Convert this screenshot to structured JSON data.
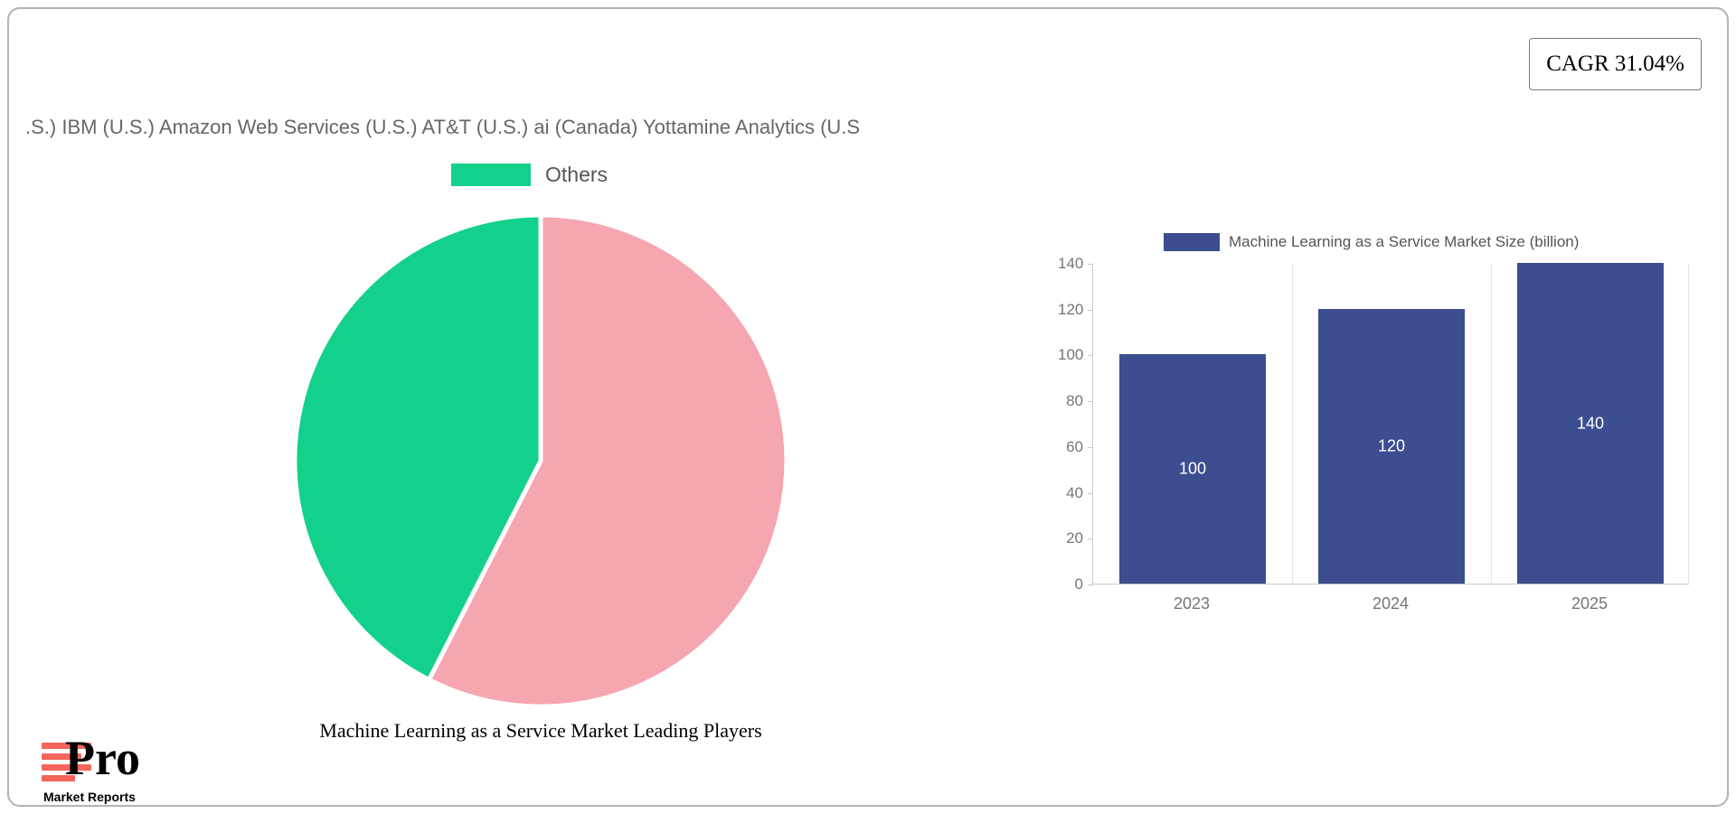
{
  "header": {
    "cagr_badge": "CAGR 31.04%"
  },
  "pie_section": {
    "players_legend_text": ".S.) IBM (U.S.) Amazon Web Services (U.S.) AT&T (U.S.) ai (Canada) Yottamine Analytics (U.S",
    "others_legend_label": "Others",
    "caption": "Machine Learning as a Service Market Leading Players"
  },
  "bar_section": {
    "legend_label": "Machine Learning as a Service Market Size (billion)"
  },
  "logo": {
    "title": "Pro",
    "subtitle": "Market Reports"
  },
  "colors": {
    "pie_green": "#13d18b",
    "pie_pink": "#f5a6b0",
    "bar_navy": "#3c4e8f",
    "logo_red": "#f4655c"
  },
  "chart_data": [
    {
      "type": "pie",
      "title": "Machine Learning as a Service Market Leading Players",
      "legend_position": "top",
      "start_angle_deg": -90,
      "direction": "clockwise",
      "slices": [
        {
          "label": ".S.) IBM (U.S.) Amazon Web Services (U.S.) AT&T (U.S.) ai (Canada) Yottamine Analytics (U.S",
          "value": 57.5,
          "color": "#f5a6b0"
        },
        {
          "label": "Others",
          "value": 42.5,
          "color": "#13d18b"
        }
      ]
    },
    {
      "type": "bar",
      "legend": "Machine Learning as a Service Market Size (billion)",
      "categories": [
        "2023",
        "2024",
        "2025"
      ],
      "values": [
        100,
        120,
        140
      ],
      "value_labels": [
        "100",
        "120",
        "140"
      ],
      "value_label_color": "#ffffff",
      "bar_color": "#3c4e8f",
      "xlabel": "",
      "ylabel": "",
      "ylim": [
        0,
        140
      ],
      "yticks": [
        0,
        20,
        40,
        60,
        80,
        100,
        120,
        140
      ],
      "grid": "vertical-only"
    }
  ]
}
